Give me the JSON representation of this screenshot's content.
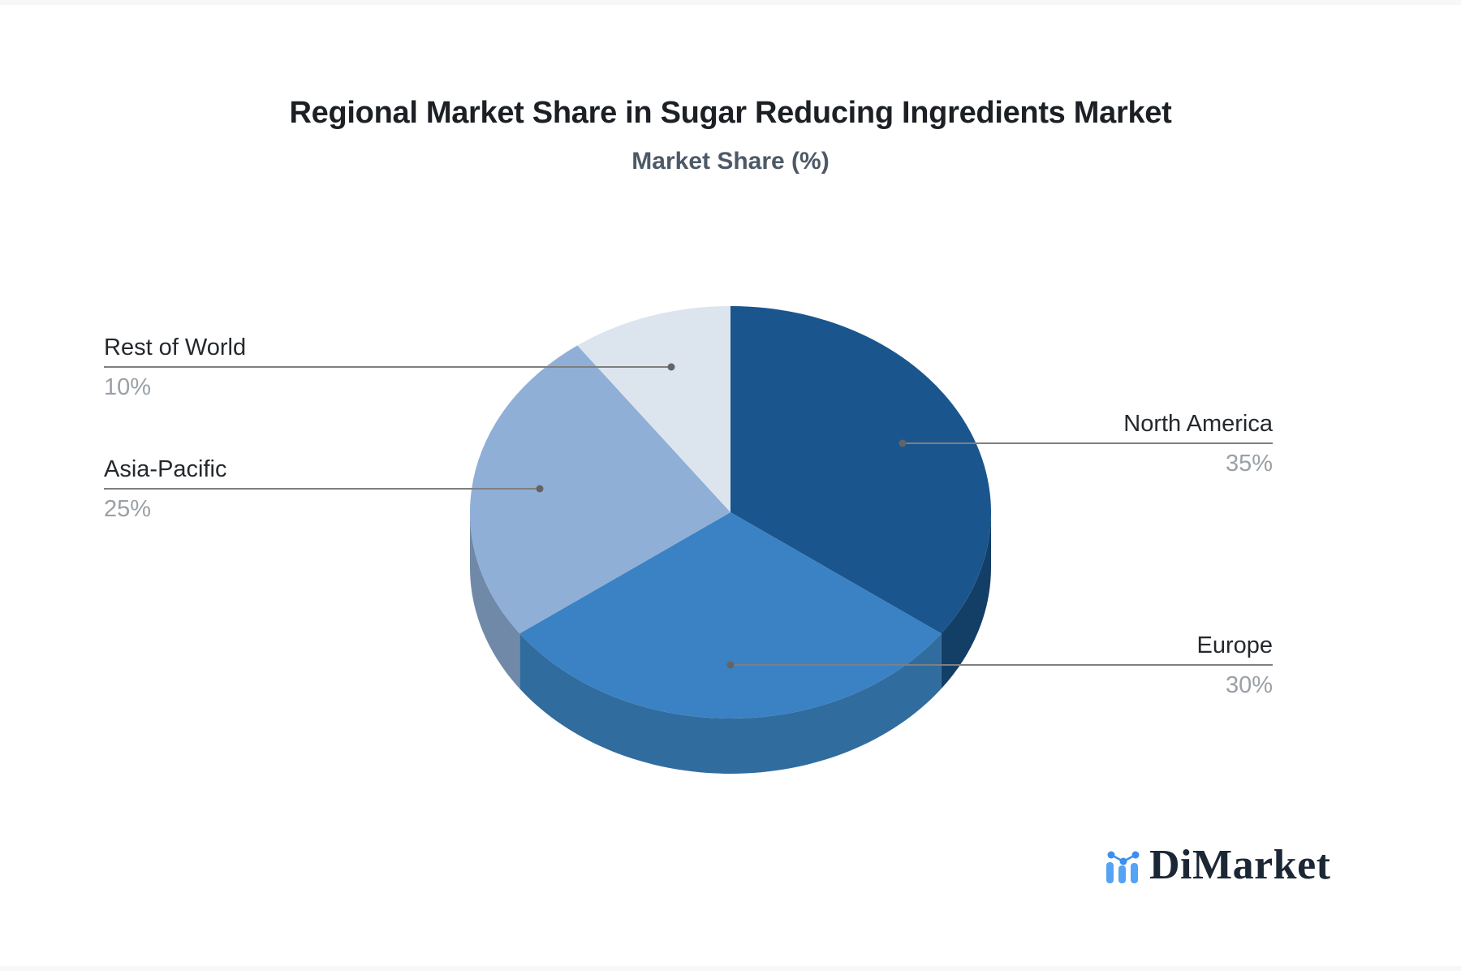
{
  "header": {
    "title": "Regional Market Share in Sugar Reducing Ingredients Market",
    "subtitle": "Market Share (%)"
  },
  "chart_data": {
    "type": "pie",
    "style": "3d",
    "title": "Regional Market Share in Sugar Reducing Ingredients Market",
    "subtitle": "Market Share (%)",
    "unit": "%",
    "direction": "clockwise",
    "start_angle_deg": 0,
    "legend_position": "none",
    "slices": [
      {
        "label": "North America",
        "value": 35,
        "display": "35%",
        "color": "#1a568d",
        "side_color": "#133e66",
        "label_side": "right"
      },
      {
        "label": "Europe",
        "value": 30,
        "display": "30%",
        "color": "#3a82c4",
        "side_color": "#316c9f",
        "label_side": "right"
      },
      {
        "label": "Asia-Pacific",
        "value": 25,
        "display": "25%",
        "color": "#8fafd6",
        "side_color": "#7189a9",
        "label_side": "left"
      },
      {
        "label": "Rest of World",
        "value": 10,
        "display": "10%",
        "color": "#dce4ee",
        "side_color": "#b9c6d8",
        "label_side": "left"
      }
    ],
    "label_colors": {
      "name": "#24292e",
      "value": "#9aa0a6"
    },
    "leader_line": {
      "color": "#7f7f7f",
      "dot_color": "#646464"
    }
  },
  "branding": {
    "logo_text": "DiMarket",
    "logo_icon": "bar-line-chart-icon",
    "icon_bar_color": "#54a3f4",
    "icon_dot_color": "#3b8fee",
    "text_color": "#1c2736"
  }
}
